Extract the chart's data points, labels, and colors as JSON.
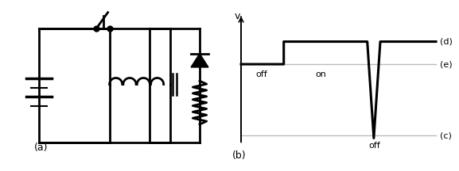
{
  "fig_width": 5.77,
  "fig_height": 2.16,
  "dpi": 100,
  "bg_color": "#ffffff",
  "circuit_label": "(a)",
  "waveform_label": "(b)",
  "waveform": {
    "v_label": "v",
    "off_label_1": "off",
    "on_label": "on",
    "off_label_2": "off",
    "label_d": "(d)",
    "label_e": "(e)",
    "label_c": "(c)",
    "level_d": 0.8,
    "level_e": 0.62,
    "level_c": 0.05,
    "waveform_color": "#000000",
    "waveform_lw": 2.2,
    "ref_color": "#bbbbbb",
    "ref_lw": 1.0,
    "ylim": [
      -0.15,
      1.05
    ],
    "xlim": [
      -0.5,
      11.0
    ]
  }
}
